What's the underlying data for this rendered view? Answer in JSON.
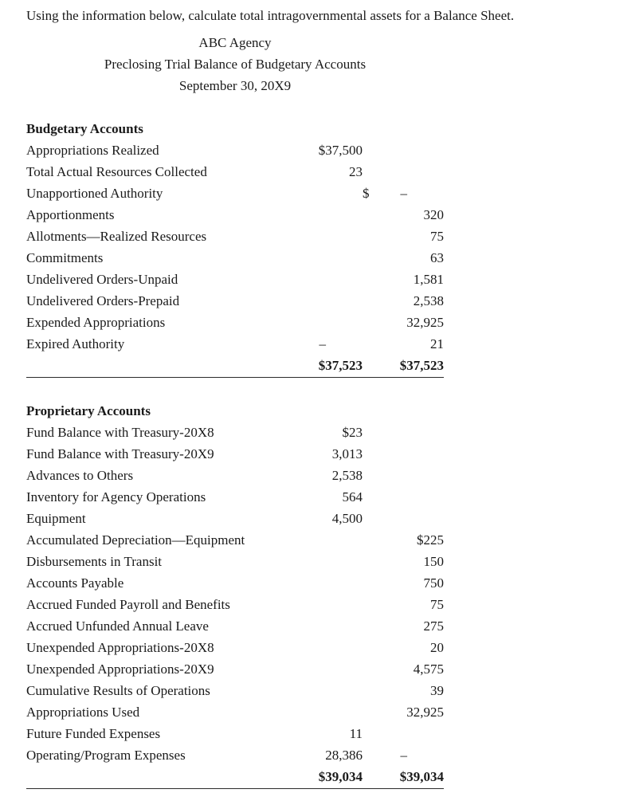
{
  "question": "Using the information below, calculate total intragovernmental assets for a Balance Sheet.",
  "header": {
    "agency": "ABC Agency",
    "report_title": "Preclosing Trial Balance of Budgetary Accounts",
    "report_date": "September 30, 20X9"
  },
  "budgetary": {
    "section_title": "Budgetary Accounts",
    "rows": [
      {
        "label": "Appropriations Realized",
        "debit": "$37,500",
        "credit": ""
      },
      {
        "label": "Total Actual Resources Collected",
        "debit": "23",
        "credit": ""
      },
      {
        "label": "Unapportioned Authority",
        "debit": "",
        "credit": "–",
        "credit_symbol": "$",
        "credit_dash": true
      },
      {
        "label": "Apportionments",
        "debit": "",
        "credit": "320"
      },
      {
        "label": "Allotments—Realized Resources",
        "debit": "",
        "credit": "75"
      },
      {
        "label": "Commitments",
        "debit": "",
        "credit": "63"
      },
      {
        "label": "Undelivered Orders-Unpaid",
        "debit": "",
        "credit": "1,581"
      },
      {
        "label": "Undelivered Orders-Prepaid",
        "debit": "",
        "credit": "2,538"
      },
      {
        "label": "Expended Appropriations",
        "debit": "",
        "credit": "32,925"
      },
      {
        "label": "Expired Authority",
        "debit": "–",
        "debit_dash": true,
        "credit": "21"
      }
    ],
    "total": {
      "debit": "$37,523",
      "credit": "$37,523"
    }
  },
  "proprietary": {
    "section_title": "Proprietary Accounts",
    "rows": [
      {
        "label": "Fund Balance with Treasury-20X8",
        "debit": "$23",
        "credit": ""
      },
      {
        "label": "Fund Balance with Treasury-20X9",
        "debit": "3,013",
        "credit": ""
      },
      {
        "label": "Advances to Others",
        "debit": "2,538",
        "credit": ""
      },
      {
        "label": "Inventory for Agency Operations",
        "debit": "564",
        "credit": ""
      },
      {
        "label": "Equipment",
        "debit": "4,500",
        "credit": ""
      },
      {
        "label": "Accumulated Depreciation—Equipment",
        "debit": "",
        "credit": "$225"
      },
      {
        "label": "Disbursements in Transit",
        "debit": "",
        "credit": "150"
      },
      {
        "label": "Accounts Payable",
        "debit": "",
        "credit": "750"
      },
      {
        "label": "Accrued Funded Payroll and Benefits",
        "debit": "",
        "credit": "75"
      },
      {
        "label": "Accrued Unfunded Annual Leave",
        "debit": "",
        "credit": "275"
      },
      {
        "label": "Unexpended Appropriations-20X8",
        "debit": "",
        "credit": "20"
      },
      {
        "label": "Unexpended Appropriations-20X9",
        "debit": "",
        "credit": "4,575"
      },
      {
        "label": "Cumulative Results of Operations",
        "debit": "",
        "credit": "39"
      },
      {
        "label": "Appropriations Used",
        "debit": "",
        "credit": "32,925"
      },
      {
        "label": "Future Funded Expenses",
        "debit": "11",
        "credit": ""
      },
      {
        "label": "Operating/Program Expenses",
        "debit": "28,386",
        "credit": "–",
        "credit_dash": true
      }
    ],
    "total": {
      "debit": "$39,034",
      "credit": "$39,034"
    }
  }
}
